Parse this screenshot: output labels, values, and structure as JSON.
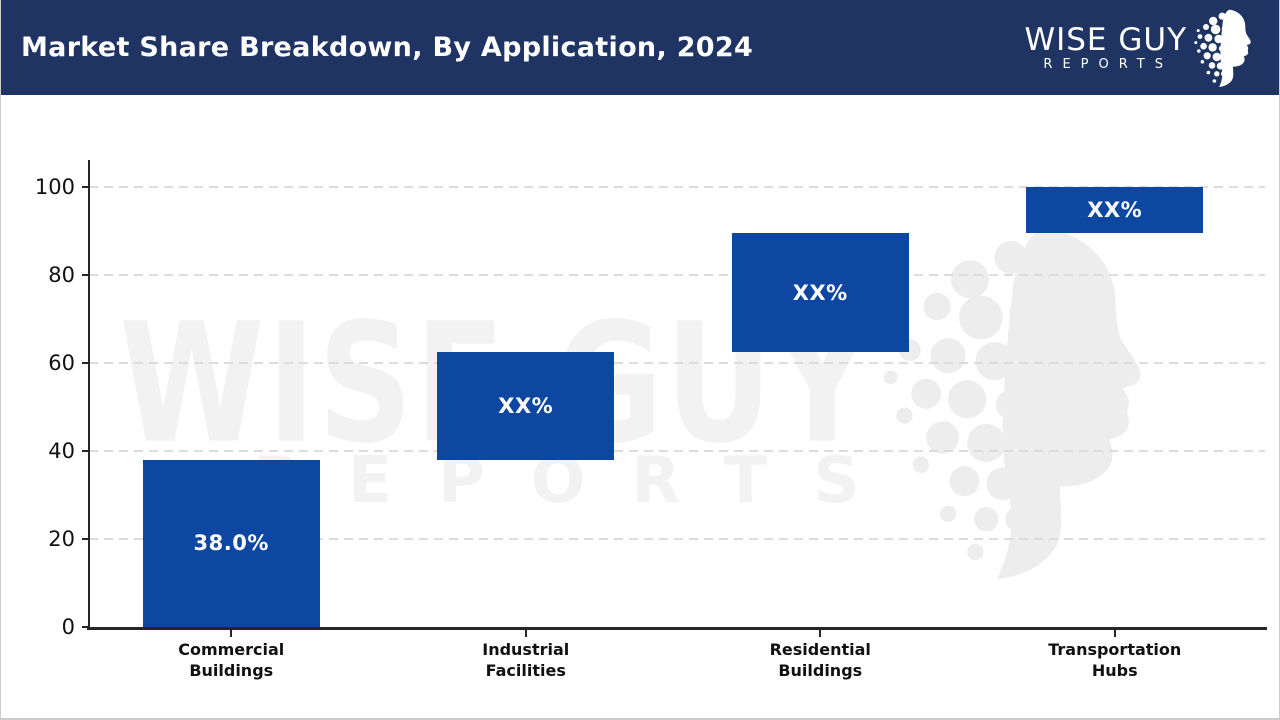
{
  "header": {
    "title": "Market Share Breakdown, By Application, 2024",
    "logo": {
      "brand_line1": "WISE GUY",
      "brand_line2": "REPORTS"
    }
  },
  "watermark": {
    "line1": "WISE GUY",
    "line2": "REPORTS"
  },
  "colors": {
    "header_bg": "#1f3463",
    "bar": "#0d47a1",
    "bar_label": "#ffffff",
    "grid": "#dcdcdc",
    "axis": "#262626",
    "tick_label": "#111111",
    "watermark": "#f2f2f2",
    "logo": "#ffffff"
  },
  "chart_data": {
    "type": "bar",
    "subtype": "waterfall",
    "title": "Market Share Breakdown, By Application, 2024",
    "categories": [
      [
        "Commercial",
        "Buildings"
      ],
      [
        "Industrial",
        "Facilities"
      ],
      [
        "Residential",
        "Buildings"
      ],
      [
        "Transportation",
        "Hubs"
      ]
    ],
    "segments": [
      {
        "start": 0,
        "end": 38.0,
        "label": "38.0%"
      },
      {
        "start": 38.0,
        "end": 62.5,
        "label": "XX%"
      },
      {
        "start": 62.5,
        "end": 89.5,
        "label": "XX%"
      },
      {
        "start": 89.5,
        "end": 100.0,
        "label": "XX%"
      }
    ],
    "y_ticks": [
      0,
      20,
      40,
      60,
      80,
      100
    ],
    "ylim": [
      0,
      105
    ],
    "xlabel": "",
    "ylabel": "",
    "grid": "horizontal-dashed",
    "legend": "none"
  }
}
